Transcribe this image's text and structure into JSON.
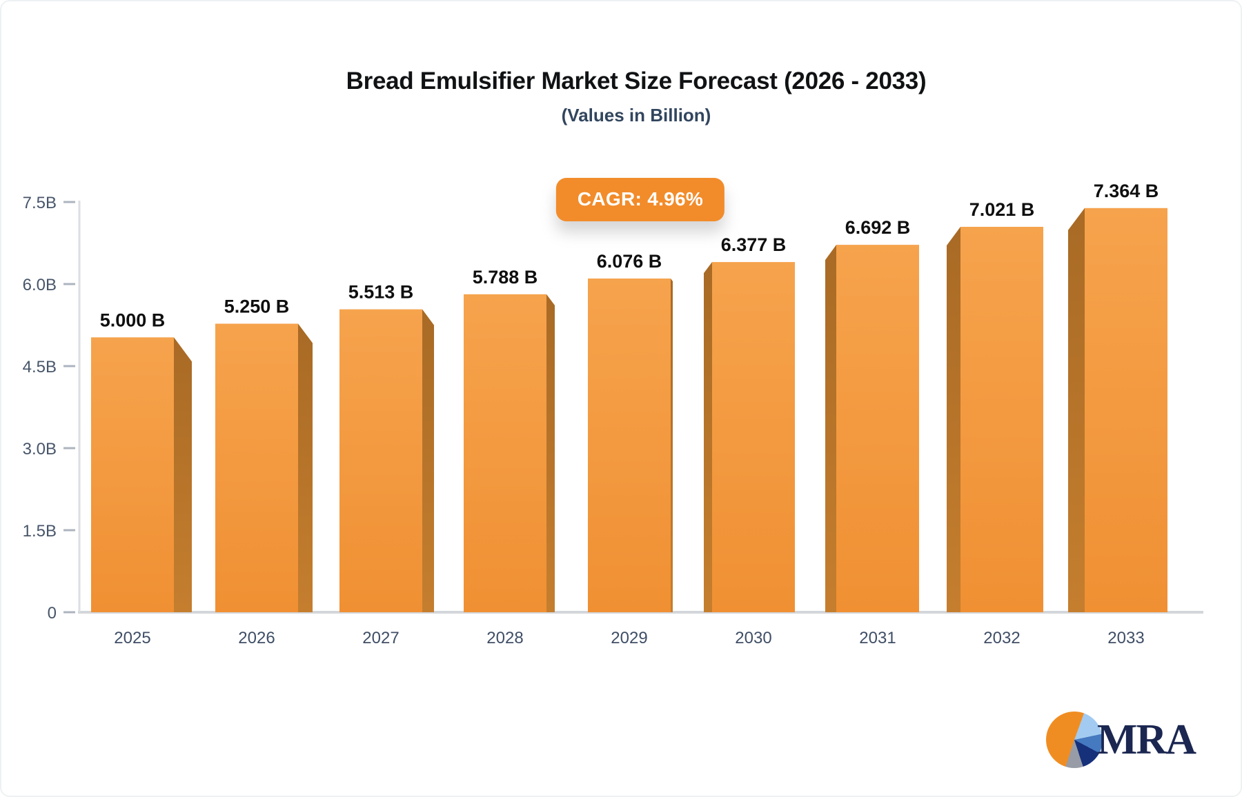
{
  "header": {
    "title": "Bread Emulsifier Market Size Forecast (2026 - 2033)",
    "subtitle": "(Values in Billion)"
  },
  "badge": {
    "label": "CAGR: 4.96%"
  },
  "logo": {
    "text": "MRA",
    "icon": "pie-chart-icon"
  },
  "colors": {
    "badge_bg": "#f28c2b",
    "bar_face_top": "#f6a34d",
    "bar_face_bottom": "#f09033",
    "bar_side_top": "#a86a25",
    "bar_side_bottom": "#c57e2e",
    "axis_line": "#dbdee2",
    "baseline": "#d3d6da",
    "tick_dash": "#aeb4bf",
    "axis_label": "#475569",
    "value_label": "#0f0f0f",
    "subtitle_color": "#31455e"
  },
  "chart_data": {
    "type": "bar",
    "title": "Bread Emulsifier Market Size Forecast (2026 - 2033)",
    "subtitle": "(Values in Billion)",
    "annotation": "CAGR: 4.96%",
    "categories": [
      "2025",
      "2026",
      "2027",
      "2028",
      "2029",
      "2030",
      "2031",
      "2032",
      "2033"
    ],
    "values": [
      5.0,
      5.25,
      5.513,
      5.788,
      6.076,
      6.377,
      6.692,
      7.021,
      7.364
    ],
    "value_labels": [
      "5.000 B",
      "5.250 B",
      "5.513 B",
      "5.788 B",
      "6.076 B",
      "6.377 B",
      "6.692 B",
      "7.021 B",
      "7.364 B"
    ],
    "unit": "Billion",
    "xlabel": "",
    "ylabel": "",
    "ylim": [
      0,
      7.5
    ],
    "ytick_values": [
      0,
      1.5,
      3.0,
      4.5,
      6.0,
      7.5
    ],
    "ytick_labels": [
      "0",
      "1.5B",
      "3.0B",
      "4.5B",
      "6.0B",
      "7.5B"
    ],
    "grid": false,
    "legend": "none",
    "style": "3d-extruded-orange-bars"
  }
}
